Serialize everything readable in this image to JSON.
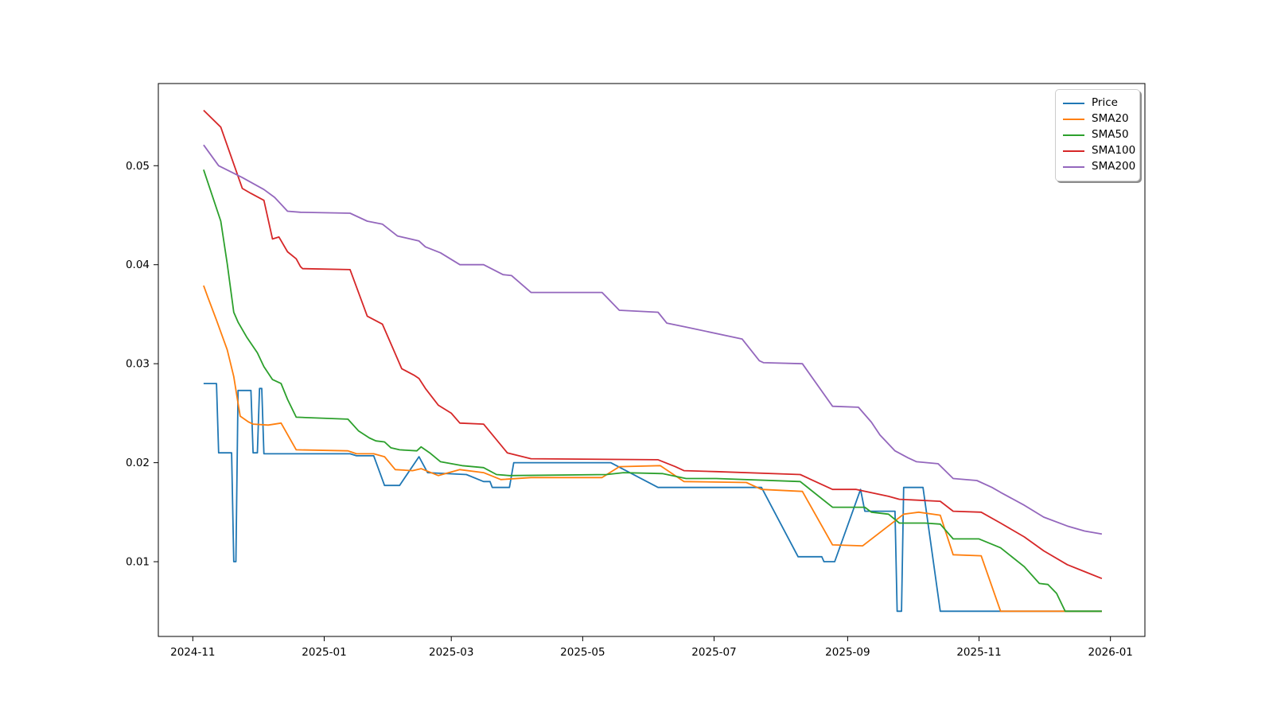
{
  "figure": {
    "background": "#ffffff"
  },
  "chart_data": {
    "type": "line",
    "title": "",
    "xlabel": "",
    "ylabel": "",
    "grid": false,
    "legend": {
      "position": "upper right",
      "entries": [
        "Price",
        "SMA20",
        "SMA50",
        "SMA100",
        "SMA200"
      ]
    },
    "xlim": [
      "2024-10-16",
      "2026-01-17"
    ],
    "ylim": [
      0.00245,
      0.0583
    ],
    "x_ticks": [
      {
        "label": "2024-11",
        "date": "2024-11-01"
      },
      {
        "label": "2025-01",
        "date": "2025-01-01"
      },
      {
        "label": "2025-03",
        "date": "2025-03-01"
      },
      {
        "label": "2025-05",
        "date": "2025-05-01"
      },
      {
        "label": "2025-07",
        "date": "2025-07-01"
      },
      {
        "label": "2025-09",
        "date": "2025-09-01"
      },
      {
        "label": "2025-11",
        "date": "2025-11-01"
      },
      {
        "label": "2026-01",
        "date": "2026-01-01"
      }
    ],
    "y_ticks": [
      {
        "label": "0.01",
        "value": 0.01
      },
      {
        "label": "0.02",
        "value": 0.02
      },
      {
        "label": "0.03",
        "value": 0.03
      },
      {
        "label": "0.04",
        "value": 0.04
      },
      {
        "label": "0.05",
        "value": 0.05
      }
    ],
    "series": [
      {
        "name": "Price",
        "color": "#1f77b4",
        "points": [
          [
            "2024-11-06",
            0.028
          ],
          [
            "2024-11-12",
            0.028
          ],
          [
            "2024-11-13",
            0.021
          ],
          [
            "2024-11-19",
            0.021
          ],
          [
            "2024-11-20",
            0.01
          ],
          [
            "2024-11-21",
            0.01
          ],
          [
            "2024-11-22",
            0.0273
          ],
          [
            "2024-11-28",
            0.0273
          ],
          [
            "2024-11-29",
            0.021
          ],
          [
            "2024-12-01",
            0.021
          ],
          [
            "2024-12-02",
            0.0275
          ],
          [
            "2024-12-03",
            0.0275
          ],
          [
            "2024-12-04",
            0.0209
          ],
          [
            "2025-01-13",
            0.0209
          ],
          [
            "2025-01-16",
            0.0207
          ],
          [
            "2025-01-24",
            0.0207
          ],
          [
            "2025-01-29",
            0.0177
          ],
          [
            "2025-02-05",
            0.0177
          ],
          [
            "2025-02-14",
            0.0206
          ],
          [
            "2025-02-18",
            0.019
          ],
          [
            "2025-03-08",
            0.0188
          ],
          [
            "2025-03-16",
            0.0181
          ],
          [
            "2025-03-19",
            0.0181
          ],
          [
            "2025-03-20",
            0.0175
          ],
          [
            "2025-03-28",
            0.0175
          ],
          [
            "2025-03-30",
            0.02
          ],
          [
            "2025-05-14",
            0.02
          ],
          [
            "2025-06-05",
            0.0175
          ],
          [
            "2025-07-23",
            0.0175
          ],
          [
            "2025-08-09",
            0.0105
          ],
          [
            "2025-08-20",
            0.0105
          ],
          [
            "2025-08-21",
            0.01
          ],
          [
            "2025-08-26",
            0.01
          ],
          [
            "2025-09-07",
            0.0173
          ],
          [
            "2025-09-09",
            0.0151
          ],
          [
            "2025-09-23",
            0.0151
          ],
          [
            "2025-09-24",
            0.005
          ],
          [
            "2025-09-26",
            0.005
          ],
          [
            "2025-09-27",
            0.0175
          ],
          [
            "2025-10-06",
            0.0175
          ],
          [
            "2025-10-14",
            0.005
          ],
          [
            "2025-12-28",
            0.005
          ]
        ]
      },
      {
        "name": "SMA20",
        "color": "#ff7f0e",
        "points": [
          [
            "2024-11-06",
            0.0379
          ],
          [
            "2024-11-08",
            0.0367
          ],
          [
            "2024-11-12",
            0.0344
          ],
          [
            "2024-11-17",
            0.0314
          ],
          [
            "2024-11-20",
            0.0287
          ],
          [
            "2024-11-22",
            0.026
          ],
          [
            "2024-11-23",
            0.0247
          ],
          [
            "2024-11-27",
            0.0241
          ],
          [
            "2024-11-29",
            0.0239
          ],
          [
            "2024-12-06",
            0.0238
          ],
          [
            "2024-12-12",
            0.024
          ],
          [
            "2024-12-19",
            0.0213
          ],
          [
            "2025-01-12",
            0.0212
          ],
          [
            "2025-01-16",
            0.0209
          ],
          [
            "2025-01-24",
            0.0209
          ],
          [
            "2025-01-29",
            0.0206
          ],
          [
            "2025-02-03",
            0.0193
          ],
          [
            "2025-02-11",
            0.0192
          ],
          [
            "2025-02-15",
            0.0194
          ],
          [
            "2025-02-23",
            0.0187
          ],
          [
            "2025-03-05",
            0.0193
          ],
          [
            "2025-03-16",
            0.019
          ],
          [
            "2025-03-24",
            0.0183
          ],
          [
            "2025-04-07",
            0.0185
          ],
          [
            "2025-05-10",
            0.0185
          ],
          [
            "2025-05-18",
            0.0196
          ],
          [
            "2025-06-06",
            0.0197
          ],
          [
            "2025-06-17",
            0.0181
          ],
          [
            "2025-07-16",
            0.018
          ],
          [
            "2025-07-23",
            0.0173
          ],
          [
            "2025-08-11",
            0.0171
          ],
          [
            "2025-08-25",
            0.0117
          ],
          [
            "2025-09-08",
            0.0116
          ],
          [
            "2025-09-27",
            0.0148
          ],
          [
            "2025-10-04",
            0.015
          ],
          [
            "2025-10-14",
            0.0147
          ],
          [
            "2025-10-20",
            0.0107
          ],
          [
            "2025-11-02",
            0.0106
          ],
          [
            "2025-11-11",
            0.005
          ],
          [
            "2025-12-28",
            0.005
          ]
        ]
      },
      {
        "name": "SMA50",
        "color": "#2ca02c",
        "points": [
          [
            "2024-11-06",
            0.0496
          ],
          [
            "2024-11-14",
            0.0444
          ],
          [
            "2024-11-17",
            0.0401
          ],
          [
            "2024-11-20",
            0.0352
          ],
          [
            "2024-11-22",
            0.0342
          ],
          [
            "2024-11-26",
            0.0327
          ],
          [
            "2024-12-01",
            0.0311
          ],
          [
            "2024-12-04",
            0.0297
          ],
          [
            "2024-12-08",
            0.0284
          ],
          [
            "2024-12-12",
            0.028
          ],
          [
            "2024-12-15",
            0.0264
          ],
          [
            "2024-12-19",
            0.0246
          ],
          [
            "2025-01-12",
            0.0244
          ],
          [
            "2025-01-17",
            0.0232
          ],
          [
            "2025-01-22",
            0.0225
          ],
          [
            "2025-01-25",
            0.0222
          ],
          [
            "2025-01-29",
            0.0221
          ],
          [
            "2025-02-01",
            0.0215
          ],
          [
            "2025-02-05",
            0.0213
          ],
          [
            "2025-02-13",
            0.0212
          ],
          [
            "2025-02-15",
            0.0216
          ],
          [
            "2025-02-19",
            0.021
          ],
          [
            "2025-02-24",
            0.0201
          ],
          [
            "2025-03-06",
            0.0197
          ],
          [
            "2025-03-16",
            0.0195
          ],
          [
            "2025-03-22",
            0.0188
          ],
          [
            "2025-03-28",
            0.0187
          ],
          [
            "2025-05-12",
            0.0188
          ],
          [
            "2025-05-20",
            0.019
          ],
          [
            "2025-06-07",
            0.0189
          ],
          [
            "2025-06-18",
            0.0184
          ],
          [
            "2025-07-02",
            0.0184
          ],
          [
            "2025-08-10",
            0.0181
          ],
          [
            "2025-08-25",
            0.0155
          ],
          [
            "2025-09-09",
            0.0155
          ],
          [
            "2025-09-12",
            0.015
          ],
          [
            "2025-09-20",
            0.0148
          ],
          [
            "2025-09-25",
            0.0139
          ],
          [
            "2025-10-07",
            0.0139
          ],
          [
            "2025-10-14",
            0.0138
          ],
          [
            "2025-10-20",
            0.0123
          ],
          [
            "2025-11-01",
            0.0123
          ],
          [
            "2025-11-11",
            0.0114
          ],
          [
            "2025-11-22",
            0.0095
          ],
          [
            "2025-11-29",
            0.0078
          ],
          [
            "2025-12-03",
            0.0077
          ],
          [
            "2025-12-07",
            0.0068
          ],
          [
            "2025-12-11",
            0.005
          ],
          [
            "2025-12-28",
            0.005
          ]
        ]
      },
      {
        "name": "SMA100",
        "color": "#d62728",
        "points": [
          [
            "2024-11-06",
            0.0556
          ],
          [
            "2024-11-14",
            0.0539
          ],
          [
            "2024-11-24",
            0.0477
          ],
          [
            "2024-11-28",
            0.0472
          ],
          [
            "2024-12-04",
            0.0465
          ],
          [
            "2024-12-08",
            0.0426
          ],
          [
            "2024-12-11",
            0.0428
          ],
          [
            "2024-12-15",
            0.0413
          ],
          [
            "2024-12-19",
            0.0406
          ],
          [
            "2024-12-21",
            0.0398
          ],
          [
            "2024-12-22",
            0.0396
          ],
          [
            "2025-01-13",
            0.0395
          ],
          [
            "2025-01-21",
            0.0348
          ],
          [
            "2025-01-28",
            0.034
          ],
          [
            "2025-02-04",
            0.0305
          ],
          [
            "2025-02-06",
            0.0295
          ],
          [
            "2025-02-12",
            0.0288
          ],
          [
            "2025-02-14",
            0.0285
          ],
          [
            "2025-02-17",
            0.0275
          ],
          [
            "2025-02-23",
            0.0258
          ],
          [
            "2025-03-01",
            0.025
          ],
          [
            "2025-03-05",
            0.024
          ],
          [
            "2025-03-16",
            0.0239
          ],
          [
            "2025-03-27",
            0.021
          ],
          [
            "2025-04-07",
            0.0204
          ],
          [
            "2025-06-05",
            0.0203
          ],
          [
            "2025-06-13",
            0.0196
          ],
          [
            "2025-06-17",
            0.0192
          ],
          [
            "2025-07-02",
            0.0191
          ],
          [
            "2025-08-10",
            0.0188
          ],
          [
            "2025-08-25",
            0.0173
          ],
          [
            "2025-09-05",
            0.0173
          ],
          [
            "2025-09-20",
            0.0166
          ],
          [
            "2025-09-25",
            0.0163
          ],
          [
            "2025-10-14",
            0.0161
          ],
          [
            "2025-10-20",
            0.0151
          ],
          [
            "2025-11-02",
            0.015
          ],
          [
            "2025-11-11",
            0.0139
          ],
          [
            "2025-11-22",
            0.0125
          ],
          [
            "2025-12-01",
            0.0111
          ],
          [
            "2025-12-12",
            0.0097
          ],
          [
            "2025-12-20",
            0.009
          ],
          [
            "2025-12-28",
            0.0083
          ]
        ]
      },
      {
        "name": "SMA200",
        "color": "#9467bd",
        "points": [
          [
            "2024-11-06",
            0.0521
          ],
          [
            "2024-11-13",
            0.05
          ],
          [
            "2024-11-24",
            0.0488
          ],
          [
            "2024-12-04",
            0.0476
          ],
          [
            "2024-12-09",
            0.0468
          ],
          [
            "2024-12-15",
            0.0454
          ],
          [
            "2024-12-21",
            0.0453
          ],
          [
            "2025-01-13",
            0.0452
          ],
          [
            "2025-01-21",
            0.0444
          ],
          [
            "2025-01-28",
            0.0441
          ],
          [
            "2025-02-04",
            0.0429
          ],
          [
            "2025-02-14",
            0.0424
          ],
          [
            "2025-02-17",
            0.0418
          ],
          [
            "2025-02-24",
            0.0412
          ],
          [
            "2025-03-05",
            0.04
          ],
          [
            "2025-03-16",
            0.04
          ],
          [
            "2025-03-25",
            0.039
          ],
          [
            "2025-03-29",
            0.0389
          ],
          [
            "2025-04-07",
            0.0372
          ],
          [
            "2025-05-10",
            0.0372
          ],
          [
            "2025-05-18",
            0.0354
          ],
          [
            "2025-06-05",
            0.0352
          ],
          [
            "2025-06-09",
            0.0341
          ],
          [
            "2025-06-18",
            0.0337
          ],
          [
            "2025-07-14",
            0.0325
          ],
          [
            "2025-07-22",
            0.0303
          ],
          [
            "2025-07-24",
            0.0301
          ],
          [
            "2025-08-11",
            0.03
          ],
          [
            "2025-08-25",
            0.0257
          ],
          [
            "2025-09-06",
            0.0256
          ],
          [
            "2025-09-12",
            0.0241
          ],
          [
            "2025-09-16",
            0.0228
          ],
          [
            "2025-09-23",
            0.0212
          ],
          [
            "2025-09-29",
            0.0205
          ],
          [
            "2025-10-03",
            0.0201
          ],
          [
            "2025-10-13",
            0.0199
          ],
          [
            "2025-10-20",
            0.0184
          ],
          [
            "2025-10-31",
            0.0182
          ],
          [
            "2025-11-07",
            0.0175
          ],
          [
            "2025-11-11",
            0.017
          ],
          [
            "2025-11-22",
            0.0157
          ],
          [
            "2025-12-01",
            0.0145
          ],
          [
            "2025-12-12",
            0.0136
          ],
          [
            "2025-12-20",
            0.0131
          ],
          [
            "2025-12-28",
            0.0128
          ]
        ]
      }
    ]
  }
}
